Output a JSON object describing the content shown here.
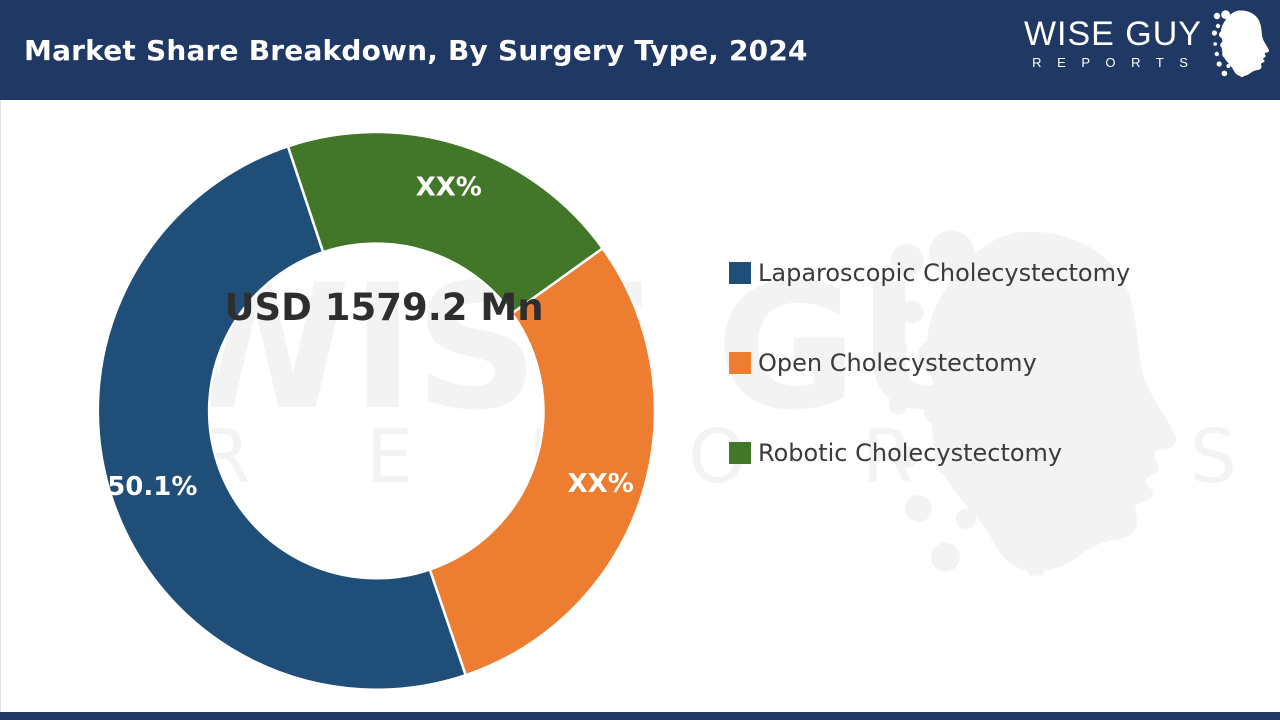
{
  "header": {
    "title": "Market Share Breakdown, By Surgery Type, 2024",
    "logo": {
      "name_line": "WISE GUY",
      "sub_line": "R E P O R T S"
    }
  },
  "watermark": {
    "big_text": "WISE GUY",
    "sub_text": "R E P O R T S"
  },
  "chart_data": {
    "type": "donut",
    "title": "Market Share Breakdown, By Surgery Type, 2024",
    "center_label": "USD 1579.2 Mn",
    "start_angle_from_top_cw_deg": -18.4,
    "direction": "counterclockwise",
    "inner_radius_ratio": 0.6,
    "legend_position": "right",
    "segments": [
      {
        "label": "Laparoscopic Cholecystectomy",
        "value_label": "50.1%",
        "percent": 50.1,
        "color": "#1f4e79"
      },
      {
        "label": "Open Cholecystectomy",
        "value_label": "XX%",
        "percent": 29.7,
        "color": "#ed7d31"
      },
      {
        "label": "Robotic Cholecystectomy",
        "value_label": "XX%",
        "percent": 20.2,
        "color": "#427628"
      }
    ]
  },
  "colors": {
    "header_bg": "#1f3864",
    "footer_bg": "#1f3864",
    "watermark": "#f3f3f3",
    "legend_text": "#3b3b3b",
    "center_text": "#2e2e2e",
    "segment_label_text": "#ffffff"
  }
}
